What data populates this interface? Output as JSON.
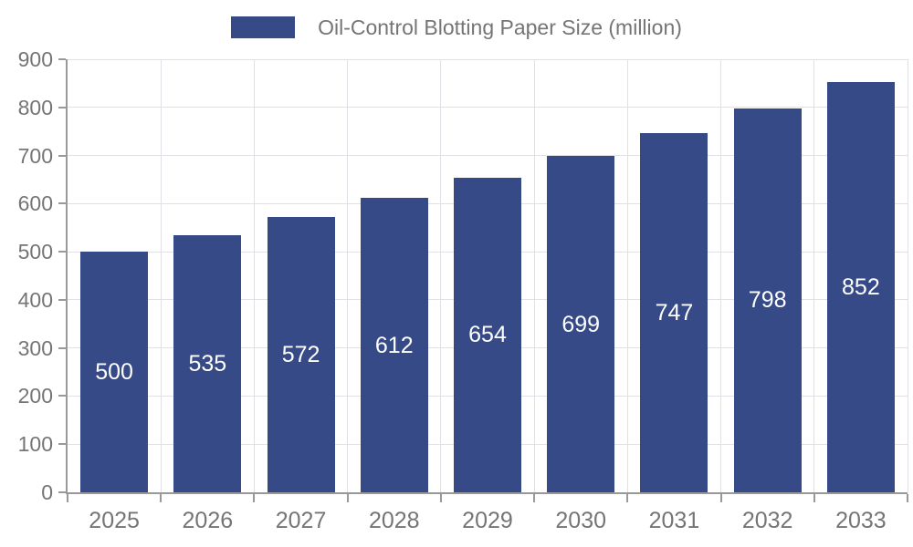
{
  "legend": {
    "label": "Oil-Control Blotting Paper Size (million)"
  },
  "chart_data": {
    "type": "bar",
    "title": "Oil-Control Blotting Paper Size (million)",
    "categories": [
      "2025",
      "2026",
      "2027",
      "2028",
      "2029",
      "2030",
      "2031",
      "2032",
      "2033"
    ],
    "values": [
      500,
      535,
      572,
      612,
      654,
      699,
      747,
      798,
      852
    ],
    "value_labels": [
      "500",
      "535",
      "572",
      "612",
      "654",
      "699",
      "747",
      "798",
      "852"
    ],
    "xlabel": "",
    "ylabel": "",
    "ylim": [
      0,
      900
    ],
    "ytick_interval": 100,
    "ytick_labels": [
      "0",
      "100",
      "200",
      "300",
      "400",
      "500",
      "600",
      "700",
      "800",
      "900"
    ],
    "grid": true,
    "legend_position": "top",
    "colors": {
      "bar": "#364a87",
      "grid": "#e0e0e6",
      "axis": "#999999",
      "tick_text": "#757575",
      "legend_text": "#757575",
      "value_text": "#ffffff",
      "background": "#ffffff"
    }
  }
}
